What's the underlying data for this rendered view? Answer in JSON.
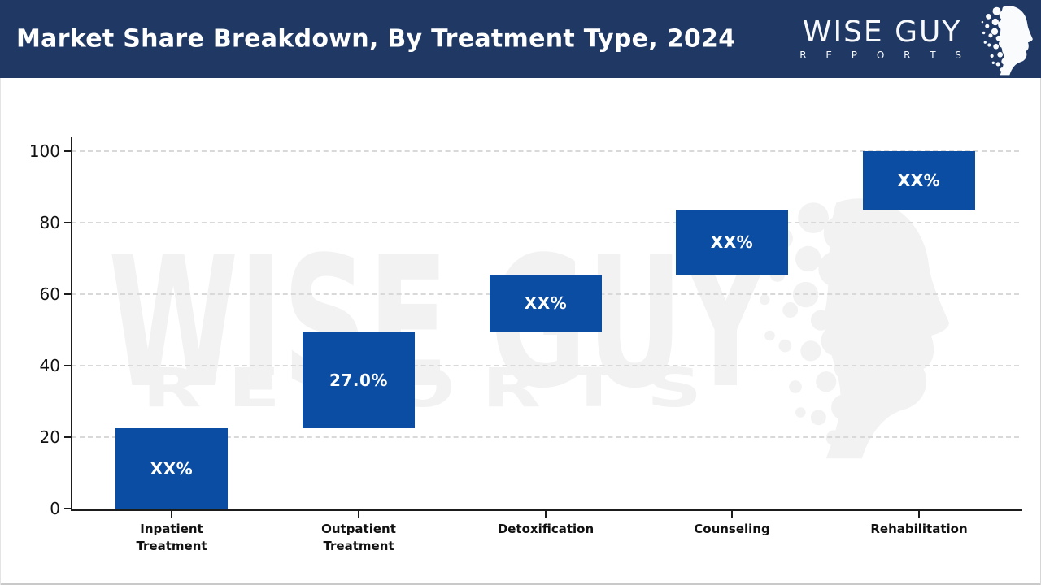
{
  "header": {
    "title": "Market Share Breakdown, By Treatment Type, 2024",
    "logo": {
      "line1": "WISE GUY",
      "line2": "R E P O R T S"
    }
  },
  "watermark": {
    "line1": "WISE GUY",
    "line2": "R E P O R T S"
  },
  "colors": {
    "header_bg": "#1f3864",
    "bar": "#0b4da2",
    "bar_label": "#ffffff",
    "grid": "#d9d9d9",
    "axis": "#1c1c1c",
    "tick_label": "#111111",
    "watermark": "#f2f2f3"
  },
  "chart_data": {
    "type": "bar",
    "variant": "waterfall",
    "title": "Market Share Breakdown, By Treatment Type, 2024",
    "xlabel": "",
    "ylabel": "",
    "ylim": [
      0,
      100
    ],
    "yticks": [
      0,
      20,
      40,
      60,
      80,
      100
    ],
    "grid": "horizontal-dashed",
    "legend": null,
    "categories": [
      "Inpatient Treatment",
      "Outpatient Treatment",
      "Detoxification",
      "Counseling",
      "Rehabilitation"
    ],
    "bars": [
      {
        "category": "Inpatient Treatment",
        "label_lines": [
          "Inpatient",
          "Treatment"
        ],
        "start": 0,
        "end": 22.5,
        "size": 22.5,
        "label": "XX%"
      },
      {
        "category": "Outpatient Treatment",
        "label_lines": [
          "Outpatient",
          "Treatment"
        ],
        "start": 22.5,
        "end": 49.5,
        "size": 27.0,
        "label": "27.0%"
      },
      {
        "category": "Detoxification",
        "label_lines": [
          "Detoxification"
        ],
        "start": 49.5,
        "end": 65.5,
        "size": 16.0,
        "label": "XX%"
      },
      {
        "category": "Counseling",
        "label_lines": [
          "Counseling"
        ],
        "start": 65.5,
        "end": 83.5,
        "size": 18.0,
        "label": "XX%"
      },
      {
        "category": "Rehabilitation",
        "label_lines": [
          "Rehabilitation"
        ],
        "start": 83.5,
        "end": 100,
        "size": 16.5,
        "label": "XX%"
      }
    ]
  }
}
